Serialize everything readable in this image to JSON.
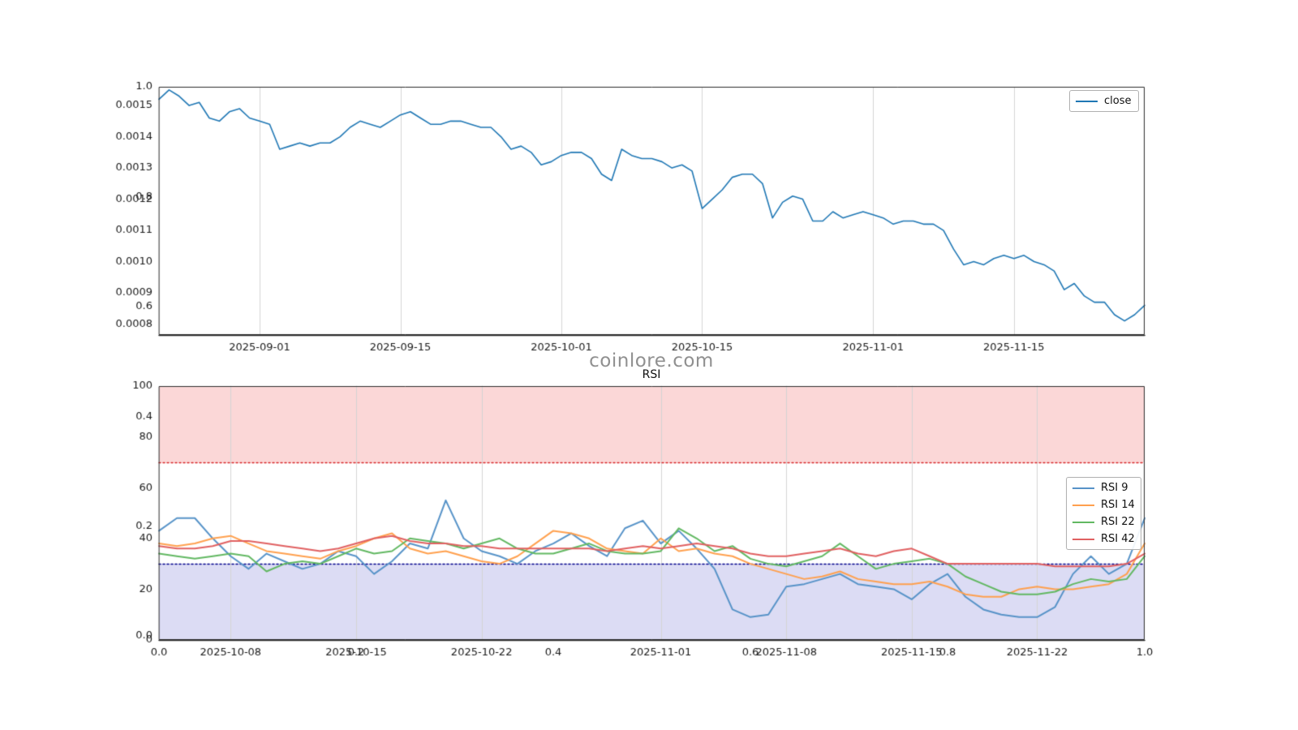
{
  "watermark": "coinlore.com",
  "colors": {
    "close_line": "#1f77b4",
    "rsi9_line": "#5793c8",
    "rsi14_line": "#ffa04e",
    "rsi22_line": "#62b862",
    "rsi42_line": "#e06061",
    "overbought_band": "#fbd7d7",
    "oversold_band": "#dcdcf4",
    "overbought_dotted_line": "#d62728",
    "oversold_dotted_line": "#00008b",
    "grid": "#d4d4d4",
    "tick_text": "#1a1a1a"
  },
  "chart_data": [
    {
      "type": "line",
      "title": "",
      "x_count": 99,
      "grid": "vertical",
      "ylim": [
        0.000765,
        0.00156
      ],
      "yticks": [
        "0.0008",
        "0.0009",
        "0.0010",
        "0.0011",
        "0.0012",
        "0.0013",
        "0.0014",
        "0.0015"
      ],
      "xticks": [
        {
          "label": "2025-09-01",
          "index": 10
        },
        {
          "label": "2025-09-15",
          "index": 24
        },
        {
          "label": "2025-10-01",
          "index": 40
        },
        {
          "label": "2025-10-15",
          "index": 54
        },
        {
          "label": "2025-11-01",
          "index": 71
        },
        {
          "label": "2025-11-15",
          "index": 85
        }
      ],
      "series": [
        {
          "name": "close",
          "color": "#1f77b4",
          "width": 1.6,
          "values": [
            0.00152,
            0.00155,
            0.00153,
            0.0015,
            0.00151,
            0.00146,
            0.00145,
            0.00148,
            0.00149,
            0.00146,
            0.00145,
            0.00144,
            0.00136,
            0.00137,
            0.00138,
            0.00137,
            0.00138,
            0.00138,
            0.0014,
            0.00143,
            0.00145,
            0.00144,
            0.00143,
            0.00145,
            0.00147,
            0.00148,
            0.00146,
            0.00144,
            0.00144,
            0.00145,
            0.00145,
            0.00144,
            0.00143,
            0.00143,
            0.0014,
            0.00136,
            0.00137,
            0.00135,
            0.00131,
            0.00132,
            0.00134,
            0.00135,
            0.00135,
            0.00133,
            0.00128,
            0.00126,
            0.00136,
            0.00134,
            0.00133,
            0.00133,
            0.00132,
            0.0013,
            0.00131,
            0.00129,
            0.00117,
            0.0012,
            0.00123,
            0.00127,
            0.00128,
            0.00128,
            0.00125,
            0.00114,
            0.00119,
            0.00121,
            0.0012,
            0.00113,
            0.00113,
            0.00116,
            0.00114,
            0.00115,
            0.00116,
            0.00115,
            0.00114,
            0.00112,
            0.00113,
            0.00113,
            0.00112,
            0.00112,
            0.0011,
            0.00104,
            0.00099,
            0.001,
            0.00099,
            0.00101,
            0.00102,
            0.00101,
            0.00102,
            0.001,
            0.00099,
            0.00097,
            0.00091,
            0.00093,
            0.00089,
            0.00087,
            0.00087,
            0.00083,
            0.00081,
            0.00083,
            0.00086
          ]
        }
      ]
    },
    {
      "type": "line",
      "title": "RSI",
      "x_count": 56,
      "grid": "vertical",
      "ylim": [
        0,
        100
      ],
      "yticks": [
        "0",
        "20",
        "40",
        "60",
        "80",
        "100"
      ],
      "xticks": [
        {
          "label": "2025-10-08",
          "index": 4
        },
        {
          "label": "2025-10-15",
          "index": 11
        },
        {
          "label": "2025-10-22",
          "index": 18
        },
        {
          "label": "2025-11-01",
          "index": 28
        },
        {
          "label": "2025-11-08",
          "index": 35
        },
        {
          "label": "2025-11-15",
          "index": 42
        },
        {
          "label": "2025-11-22",
          "index": 49
        }
      ],
      "bands": [
        {
          "from": 70,
          "to": 100,
          "color": "#fbd7d7"
        },
        {
          "from": 0,
          "to": 30,
          "color": "#dcdcf4"
        }
      ],
      "hlines": [
        {
          "value": 70,
          "color": "#d62728",
          "dash": [
            2,
            3
          ]
        },
        {
          "value": 30,
          "color": "#00008b",
          "dash": [
            2,
            3
          ]
        }
      ],
      "series": [
        {
          "name": "RSI 9",
          "color": "#5793c8",
          "width": 2,
          "values": [
            43,
            48,
            48,
            40,
            33,
            28,
            34,
            31,
            28,
            30,
            35,
            33,
            26,
            31,
            38,
            36,
            55,
            40,
            35,
            33,
            30,
            35,
            38,
            42,
            37,
            33,
            44,
            47,
            38,
            43,
            36,
            28,
            12,
            9,
            10,
            21,
            22,
            24,
            26,
            22,
            21,
            20,
            16,
            22,
            26,
            17,
            12,
            10,
            9,
            9,
            13,
            26,
            33,
            26,
            30,
            48
          ]
        },
        {
          "name": "RSI 14",
          "color": "#ffa04e",
          "width": 2,
          "values": [
            38,
            37,
            38,
            40,
            41,
            38,
            35,
            34,
            33,
            32,
            35,
            37,
            40,
            42,
            36,
            34,
            35,
            33,
            31,
            30,
            33,
            38,
            43,
            42,
            40,
            36,
            35,
            34,
            40,
            35,
            36,
            34,
            33,
            30,
            28,
            26,
            24,
            25,
            27,
            24,
            23,
            22,
            22,
            23,
            21,
            18,
            17,
            17,
            20,
            21,
            20,
            20,
            21,
            22,
            26,
            38
          ]
        },
        {
          "name": "RSI 22",
          "color": "#62b862",
          "width": 2,
          "values": [
            34,
            33,
            32,
            33,
            34,
            33,
            27,
            30,
            31,
            30,
            33,
            36,
            34,
            35,
            40,
            39,
            38,
            36,
            38,
            40,
            36,
            34,
            34,
            36,
            38,
            35,
            34,
            34,
            35,
            44,
            40,
            35,
            37,
            32,
            30,
            29,
            31,
            33,
            38,
            33,
            28,
            30,
            31,
            32,
            30,
            25,
            22,
            19,
            18,
            18,
            19,
            22,
            24,
            23,
            24,
            33
          ]
        },
        {
          "name": "RSI 42",
          "color": "#e06061",
          "width": 2,
          "values": [
            37,
            36,
            36,
            37,
            39,
            39,
            38,
            37,
            36,
            35,
            36,
            38,
            40,
            41,
            39,
            38,
            38,
            37,
            37,
            36,
            36,
            36,
            36,
            36,
            36,
            35,
            36,
            37,
            36,
            37,
            38,
            37,
            36,
            34,
            33,
            33,
            34,
            35,
            36,
            34,
            33,
            35,
            36,
            33,
            30,
            30,
            30,
            30,
            30,
            30,
            29,
            29,
            29,
            29,
            30,
            34
          ]
        }
      ]
    }
  ],
  "overlay_axis": {
    "yticks": [
      "1.0",
      "0.8",
      "0.6",
      "0.4",
      "0.2",
      "0.0"
    ],
    "xticks": [
      "0.0",
      "0.2",
      "0.4",
      "0.6",
      "0.8",
      "1.0"
    ]
  }
}
